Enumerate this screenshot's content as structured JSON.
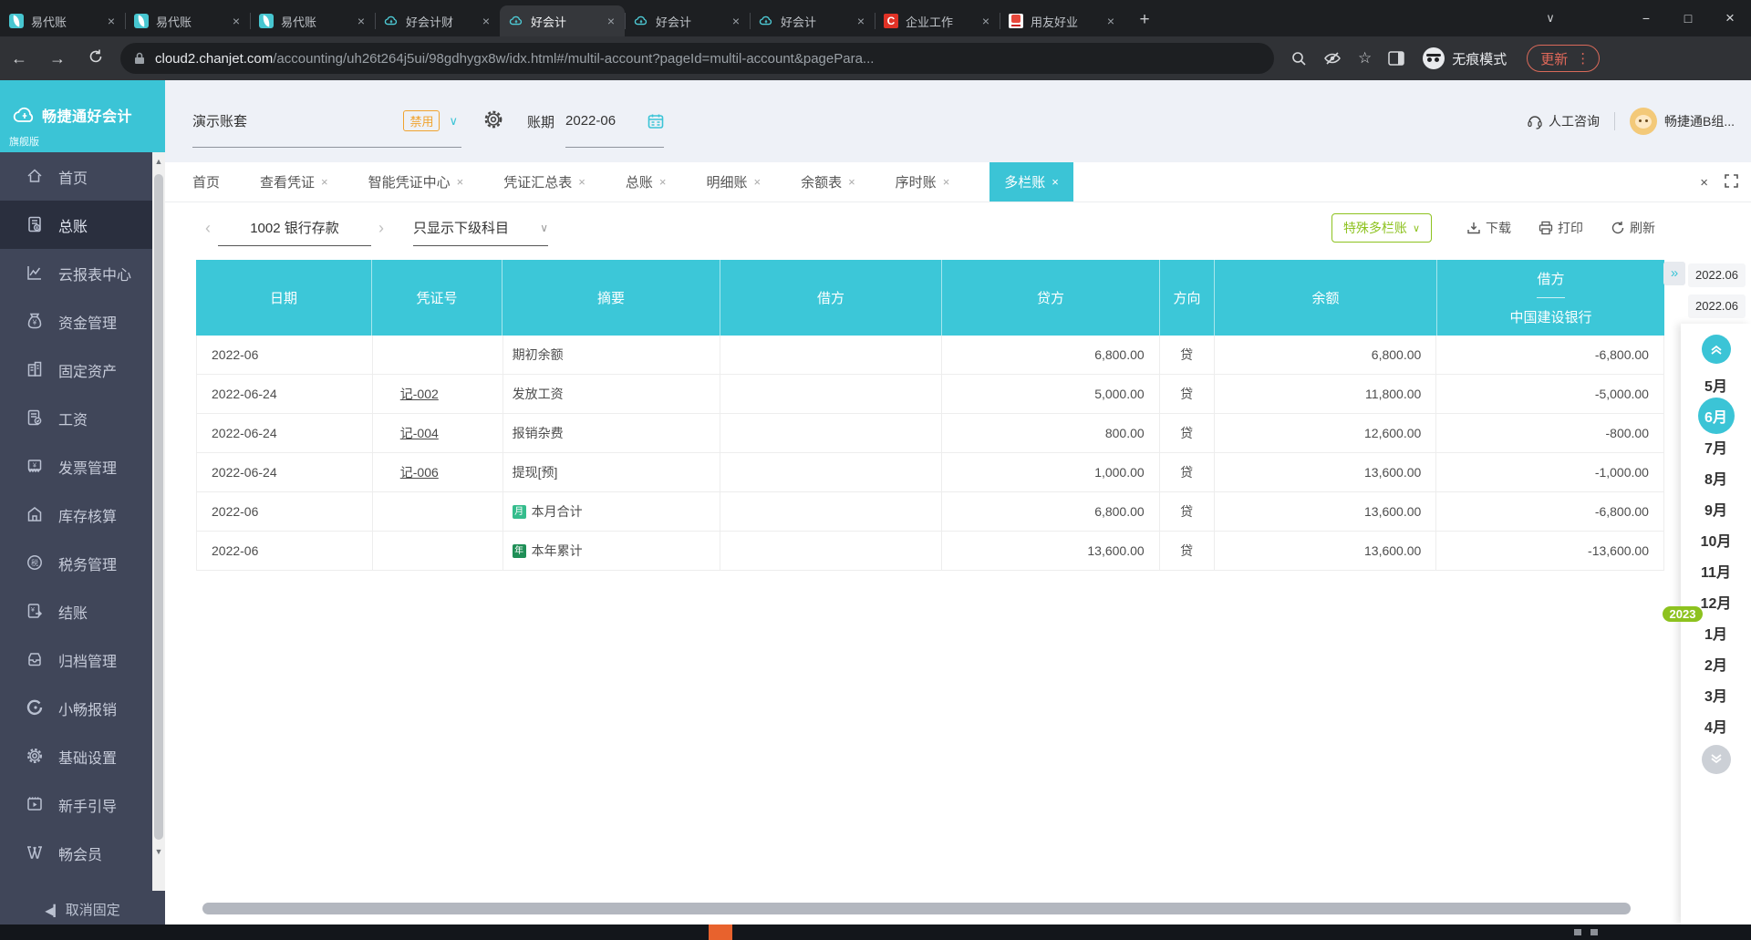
{
  "browser": {
    "tabs": [
      {
        "title": "易代账",
        "icon": "feather-icon",
        "active": false
      },
      {
        "title": "易代账",
        "icon": "feather-icon",
        "active": false
      },
      {
        "title": "易代账",
        "icon": "feather-icon",
        "active": false
      },
      {
        "title": "好会计财",
        "icon": "cloud-icon",
        "active": false
      },
      {
        "title": "好会计",
        "icon": "cloud-icon",
        "active": true
      },
      {
        "title": "好会计",
        "icon": "cloud-icon",
        "active": false
      },
      {
        "title": "好会计",
        "icon": "cloud-icon",
        "active": false
      },
      {
        "title": "企业工作",
        "icon": "c-red-icon",
        "active": false
      },
      {
        "title": "用友好业",
        "icon": "chanjet-icon",
        "active": false
      }
    ],
    "url_host": "cloud2.chanjet.com",
    "url_path": "/accounting/uh26t264j5ui/98gdhygx8w/idx.html#/multil-account?pageId=multil-account&pagePara...",
    "incognito_label": "无痕模式",
    "update_label": "更新"
  },
  "glyphs": {
    "new_tab": "+",
    "tab_close": "×",
    "chevron_down": "∨",
    "minimize": "−",
    "restore": "□",
    "close": "×",
    "back": "←",
    "forward": "→",
    "star": "☆",
    "kebab": "⋮",
    "pager_prev": "‹",
    "pager_next": "›",
    "flip": "»",
    "scroll_up": "▲",
    "scroll_down": "▼",
    "pin": "◀▎"
  },
  "logo": {
    "title": "畅捷通好会计",
    "edition": "旗舰版"
  },
  "header": {
    "account_set": "演示账套",
    "disabled_badge": "禁用",
    "period_label": "账期",
    "period_value": "2022-06",
    "support": "人工咨询",
    "user": "畅捷通B组..."
  },
  "sidebar": {
    "items": [
      {
        "label": "首页",
        "icon": "home-icon",
        "active": false
      },
      {
        "label": "总账",
        "icon": "ledger-icon",
        "active": true
      },
      {
        "label": "云报表中心",
        "icon": "report-icon",
        "active": false
      },
      {
        "label": "资金管理",
        "icon": "funds-icon",
        "active": false
      },
      {
        "label": "固定资产",
        "icon": "assets-icon",
        "active": false
      },
      {
        "label": "工资",
        "icon": "salary-icon",
        "active": false
      },
      {
        "label": "发票管理",
        "icon": "invoice-icon",
        "active": false
      },
      {
        "label": "库存核算",
        "icon": "inventory-icon",
        "active": false
      },
      {
        "label": "税务管理",
        "icon": "tax-icon",
        "active": false
      },
      {
        "label": "结账",
        "icon": "closing-icon",
        "active": false
      },
      {
        "label": "归档管理",
        "icon": "archive-icon",
        "active": false
      },
      {
        "label": "小畅报销",
        "icon": "reimburse-icon",
        "active": false
      },
      {
        "label": "基础设置",
        "icon": "settings-icon",
        "active": false
      },
      {
        "label": "新手引导",
        "icon": "guide-icon",
        "active": false
      },
      {
        "label": "畅会员",
        "icon": "member-icon",
        "active": false
      }
    ],
    "unpin": "取消固定"
  },
  "app_tabs": [
    {
      "label": "首页",
      "closable": false,
      "active": false
    },
    {
      "label": "查看凭证",
      "closable": true,
      "active": false
    },
    {
      "label": "智能凭证中心",
      "closable": true,
      "active": false
    },
    {
      "label": "凭证汇总表",
      "closable": true,
      "active": false
    },
    {
      "label": "总账",
      "closable": true,
      "active": false
    },
    {
      "label": "明细账",
      "closable": true,
      "active": false
    },
    {
      "label": "余额表",
      "closable": true,
      "active": false
    },
    {
      "label": "序时账",
      "closable": true,
      "active": false
    },
    {
      "label": "多栏账",
      "closable": true,
      "active": true
    }
  ],
  "toolbar": {
    "account": "1002 银行存款",
    "filter": "只显示下级科目",
    "special": "特殊多栏账",
    "download": "下载",
    "print": "打印",
    "refresh": "刷新"
  },
  "table": {
    "headers": {
      "date": "日期",
      "voucher": "凭证号",
      "summary": "摘要",
      "debit": "借方",
      "credit": "贷方",
      "direction": "方向",
      "balance": "余额",
      "group": "借方",
      "bank": "中国建设银行"
    },
    "rows": [
      {
        "date": "2022-06",
        "voucher": "",
        "summary": "期初余额",
        "summary_icon": "",
        "debit": "",
        "credit": "6,800.00",
        "direction": "贷",
        "balance": "6,800.00",
        "bank": "-6,800.00"
      },
      {
        "date": "2022-06-24",
        "voucher": "记-002",
        "summary": "发放工资",
        "summary_icon": "",
        "debit": "",
        "credit": "5,000.00",
        "direction": "贷",
        "balance": "11,800.00",
        "bank": "-5,000.00"
      },
      {
        "date": "2022-06-24",
        "voucher": "记-004",
        "summary": "报销杂费",
        "summary_icon": "",
        "debit": "",
        "credit": "800.00",
        "direction": "贷",
        "balance": "12,600.00",
        "bank": "-800.00"
      },
      {
        "date": "2022-06-24",
        "voucher": "记-006",
        "summary": "提现[预]",
        "summary_icon": "",
        "debit": "",
        "credit": "1,000.00",
        "direction": "贷",
        "balance": "13,600.00",
        "bank": "-1,000.00"
      },
      {
        "date": "2022-06",
        "voucher": "",
        "summary": "本月合计",
        "summary_icon": "month",
        "debit": "",
        "credit": "6,800.00",
        "direction": "贷",
        "balance": "13,600.00",
        "bank": "-6,800.00"
      },
      {
        "date": "2022-06",
        "voucher": "",
        "summary": "本年累计",
        "summary_icon": "year",
        "debit": "",
        "credit": "13,600.00",
        "direction": "贷",
        "balance": "13,600.00",
        "bank": "-13,600.00"
      }
    ]
  },
  "month_panel": {
    "period_top": "2022.06",
    "period_bottom": "2022.06",
    "months": [
      "5月",
      "6月",
      "7月",
      "8月",
      "9月",
      "10月",
      "11月",
      "12月",
      "1月",
      "2月",
      "3月",
      "4月"
    ],
    "active_month": "6月",
    "year_badge": "2023",
    "year_badge_before": "1月"
  },
  "colors": {
    "accent": "#3bc4d6",
    "table_header": "#3cc7d8",
    "green": "#8dc21f",
    "orange_badge": "#f0a32f",
    "update_red": "#e2695a",
    "sidebar_bg": "#404659",
    "sidebar_active": "#2a2f3e",
    "month_icon": "#35bd8d",
    "year_icon": "#1f8f57",
    "taskbar_orange": "#e8622d"
  }
}
